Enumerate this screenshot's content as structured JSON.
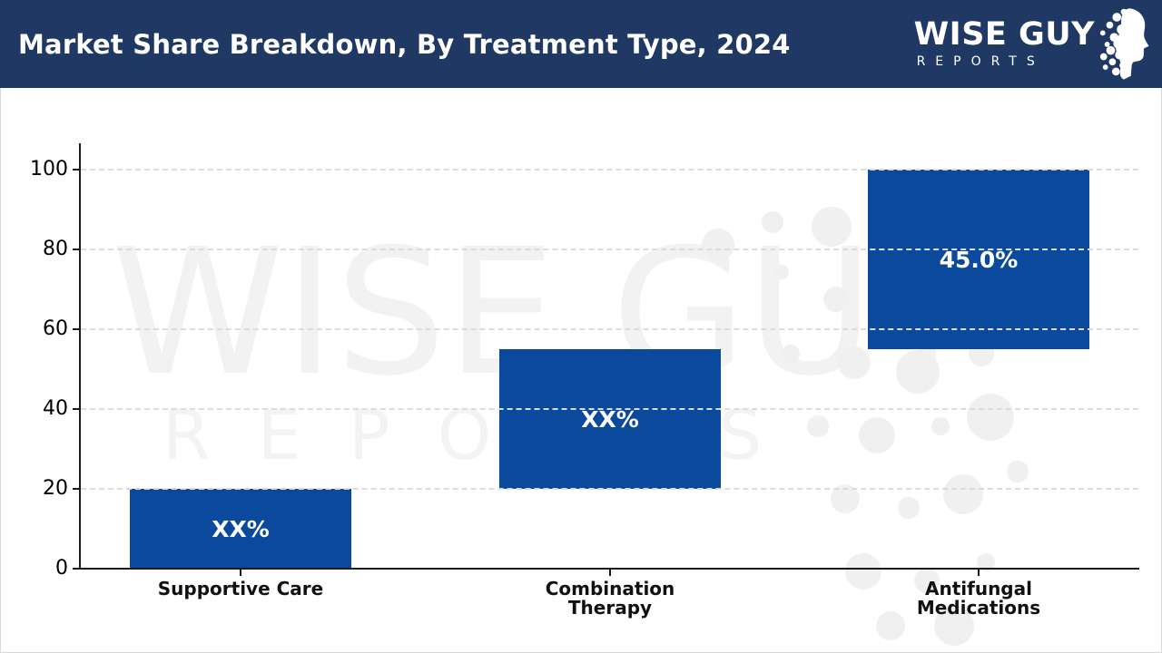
{
  "header": {
    "title": "Market Share Breakdown, By Treatment Type, 2024",
    "logo": {
      "line1": "WISE GUY",
      "line2": "REPORTS"
    }
  },
  "watermark": {
    "line1": "WISE GUY",
    "line2": "REPORTS"
  },
  "chart_data": {
    "type": "bar",
    "subtype": "waterfall-floating-bars",
    "title": "Market Share Breakdown, By Treatment Type, 2024",
    "categories": [
      "Supportive Care",
      "Combination\nTherapy",
      "Antifungal\nMedications"
    ],
    "series": [
      {
        "name": "Market Share (%)",
        "segments": [
          {
            "category": "Supportive Care",
            "start": 0,
            "end": 20,
            "label": "XX%"
          },
          {
            "category": "Combination Therapy",
            "start": 20,
            "end": 55,
            "label": "XX%"
          },
          {
            "category": "Antifungal Medications",
            "start": 55,
            "end": 100,
            "label": "45.0%"
          }
        ]
      }
    ],
    "ylim": [
      0,
      105
    ],
    "yticks": [
      0,
      20,
      40,
      60,
      80,
      100
    ],
    "grid": "horizontal-dashed",
    "legend": "none",
    "bar_color": "#0b499c",
    "bar_label_color": "#ffffff"
  },
  "colors": {
    "header_bg": "#203864",
    "bar": "#0b499c",
    "grid": "#dcdcdc",
    "axis": "#1a1a1a",
    "watermark": "#f2f2f2",
    "card_border": "#d9d9d9",
    "title_text": "#ffffff"
  }
}
